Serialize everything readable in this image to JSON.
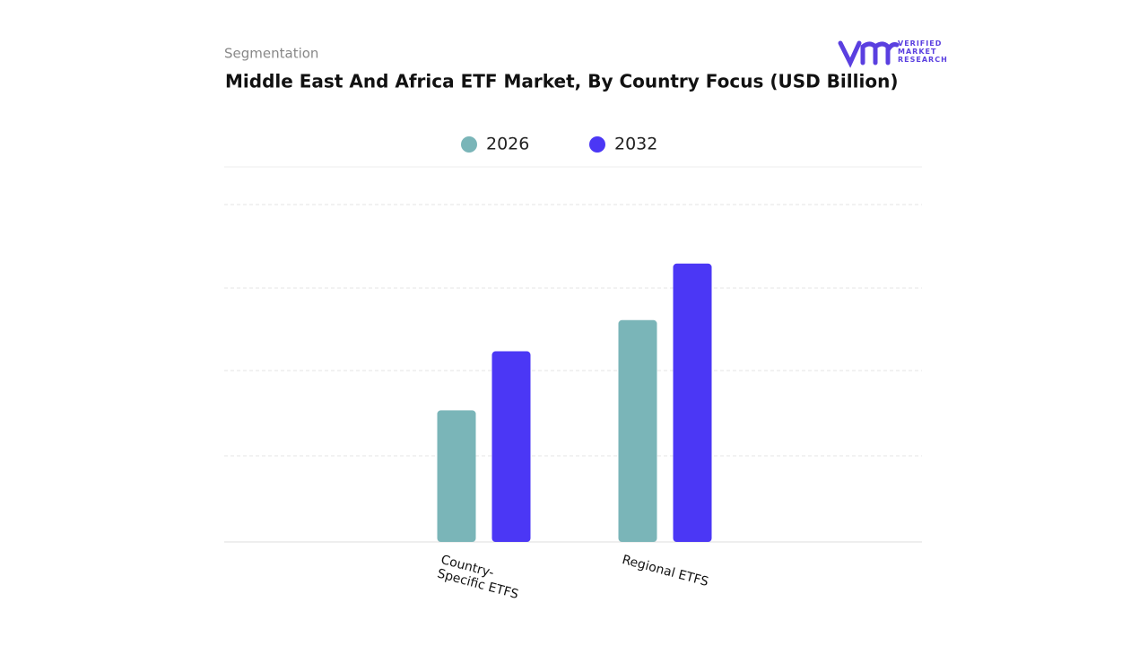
{
  "header": {
    "subtitle": "Segmentation",
    "logo_text": "VERIFIED MARKET RESEARCH"
  },
  "chart_data": {
    "type": "bar",
    "title": "Middle East And Africa ETF Market, By Country Focus (USD Billion)",
    "categories": [
      "Country-Specific ETFS",
      "Regional ETFS"
    ],
    "series": [
      {
        "name": "2026",
        "color": "#7ab5b8",
        "values": [
          1.56,
          2.63
        ]
      },
      {
        "name": "2032",
        "color": "#4b37f5",
        "values": [
          2.26,
          3.3
        ]
      }
    ],
    "ylim": [
      0,
      4
    ]
  }
}
